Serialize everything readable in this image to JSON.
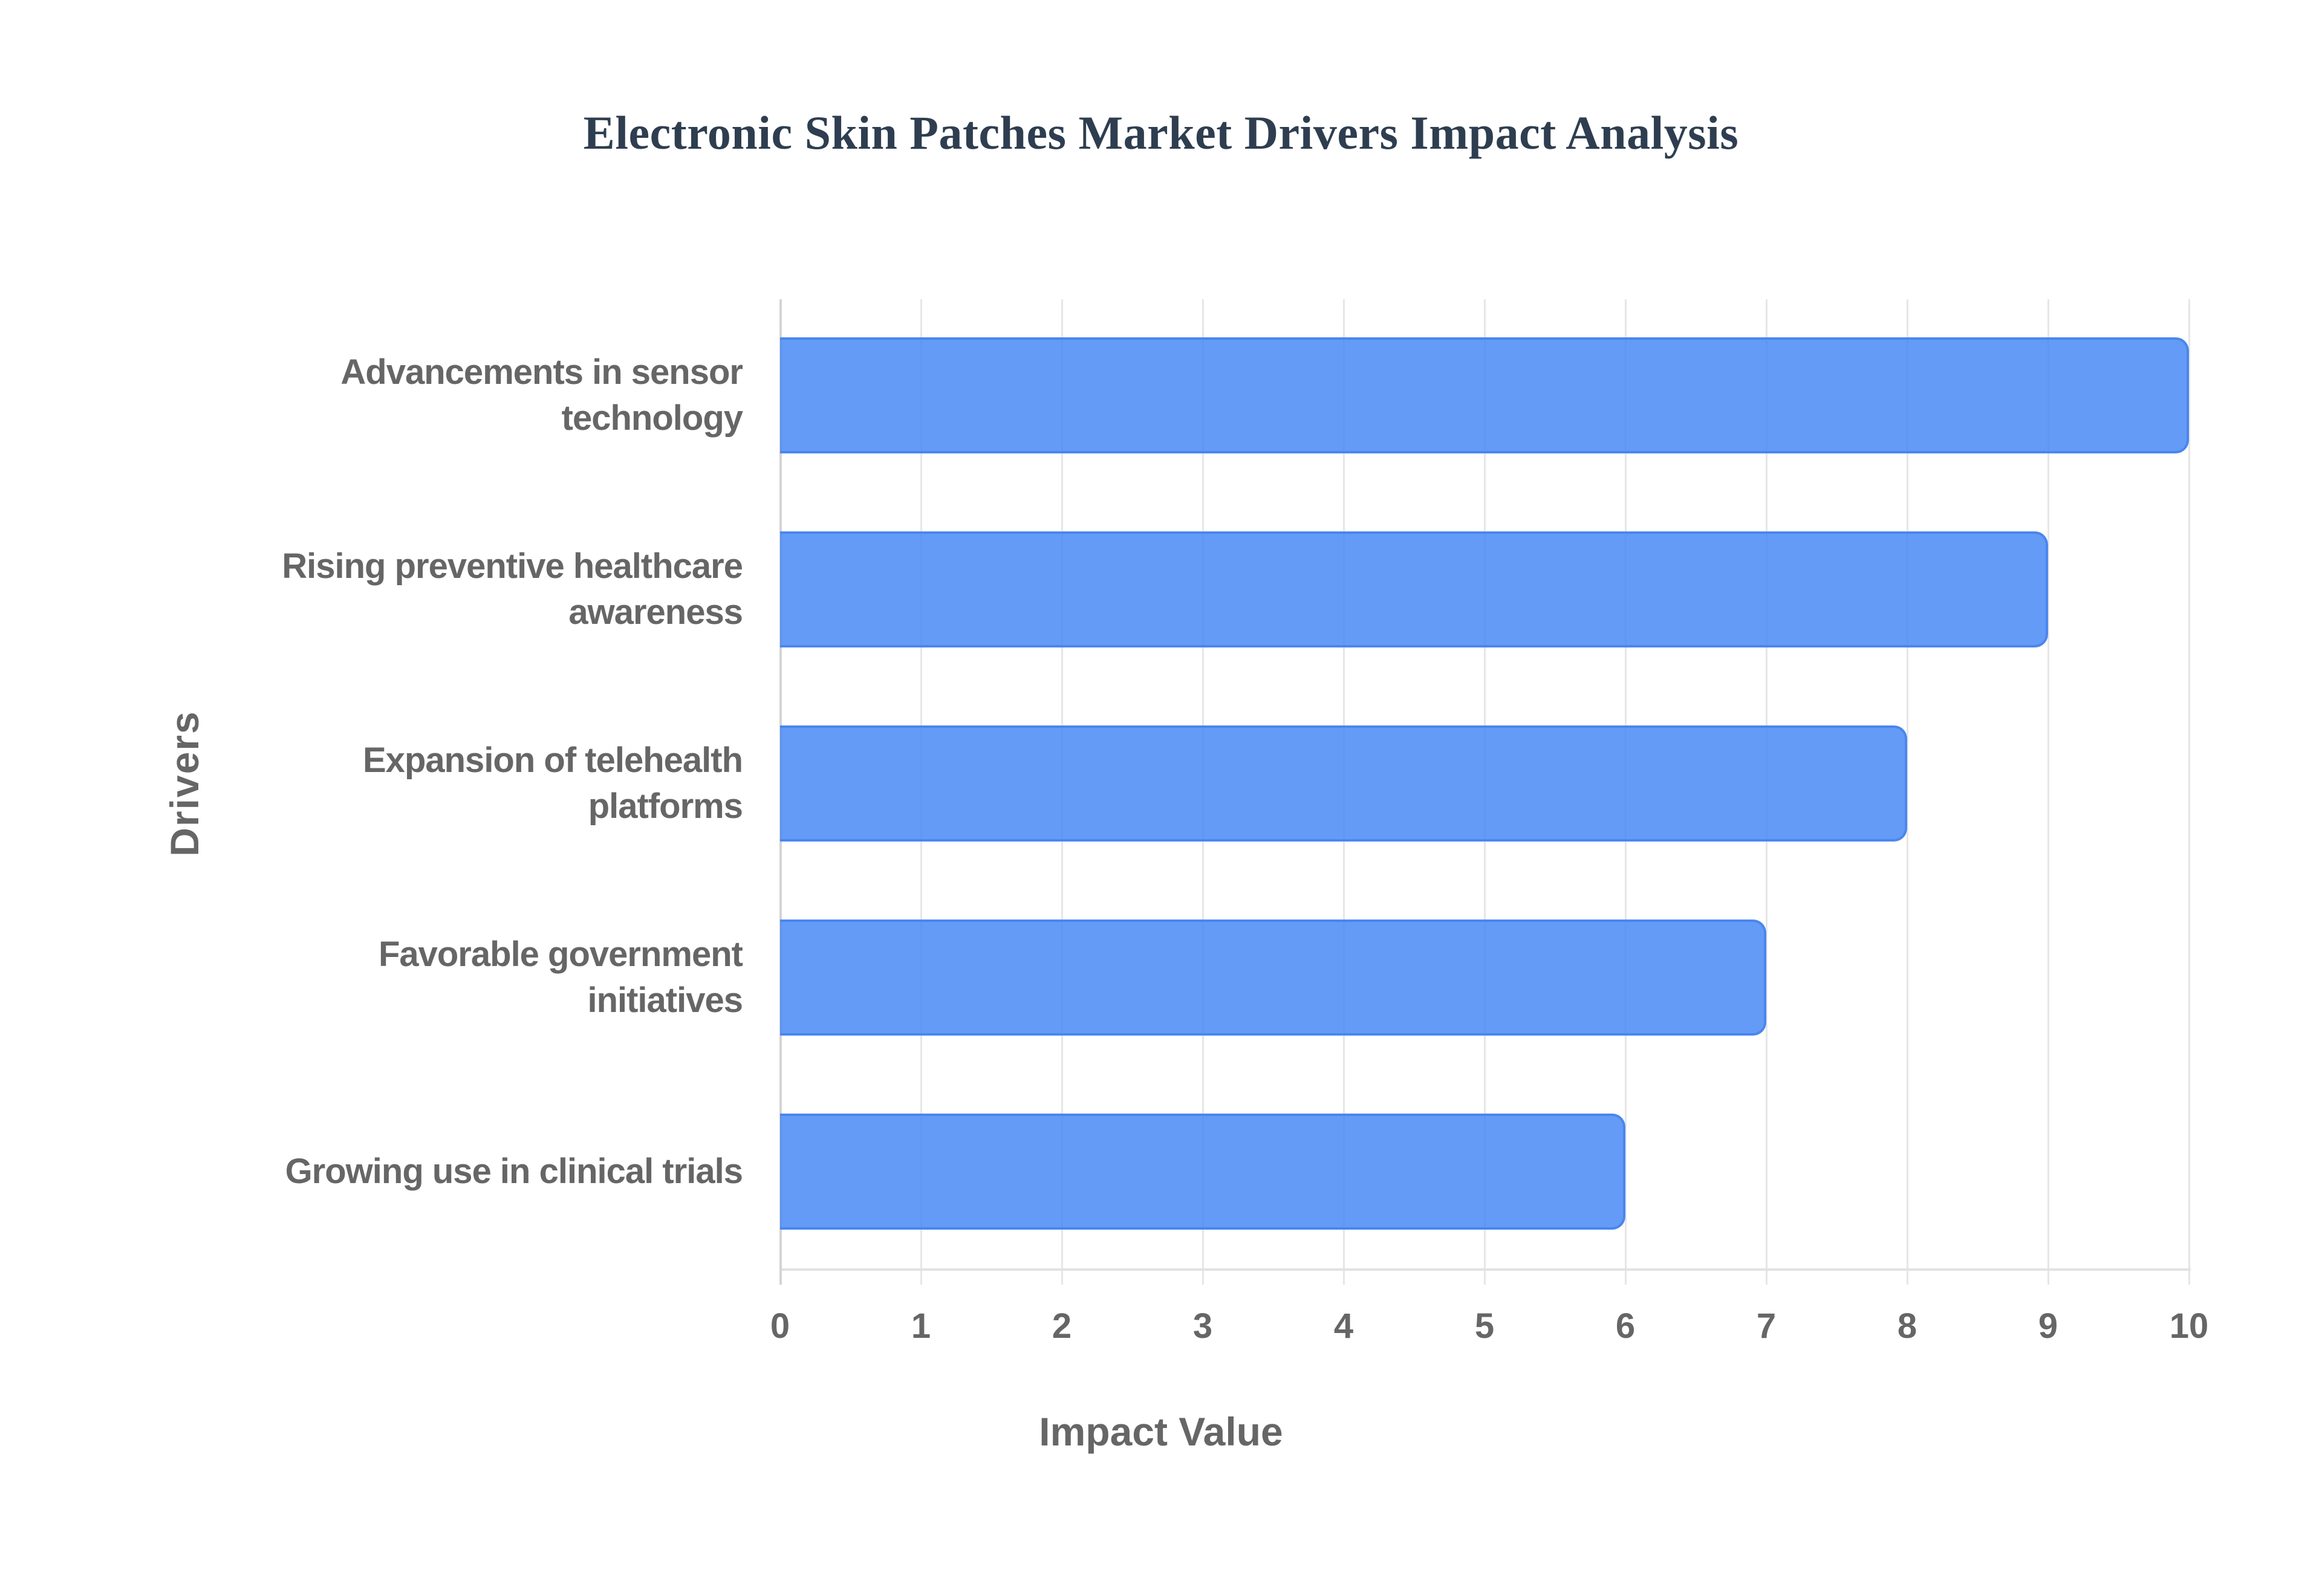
{
  "chart": {
    "title": "Electronic Skin Patches Market Drivers Impact Analysis",
    "xlabel": "Impact Value",
    "ylabel": "Drivers",
    "xticks": [
      "0",
      "1",
      "2",
      "3",
      "4",
      "5",
      "6",
      "7",
      "8",
      "9",
      "10"
    ],
    "bar_color": "#4285f4",
    "title_color": "#2e3e50",
    "label_color": "#666666",
    "categories": [
      [
        "Advancements in sensor",
        "technology"
      ],
      [
        "Rising preventive healthcare",
        "awareness"
      ],
      [
        "Expansion of telehealth",
        "platforms"
      ],
      [
        "Favorable government",
        "initiatives"
      ],
      [
        "Growing use in clinical trials"
      ]
    ]
  },
  "chart_data": {
    "type": "bar",
    "orientation": "horizontal",
    "title": "Electronic Skin Patches Market Drivers Impact Analysis",
    "xlabel": "Impact Value",
    "ylabel": "Drivers",
    "categories": [
      "Advancements in sensor technology",
      "Rising preventive healthcare awareness",
      "Expansion of telehealth platforms",
      "Favorable government initiatives",
      "Growing use in clinical trials"
    ],
    "values": [
      10,
      9,
      8,
      7,
      6
    ],
    "xlim": [
      0,
      10
    ],
    "xticks": [
      0,
      1,
      2,
      3,
      4,
      5,
      6,
      7,
      8,
      9,
      10
    ],
    "grid": true,
    "legend": "none"
  }
}
